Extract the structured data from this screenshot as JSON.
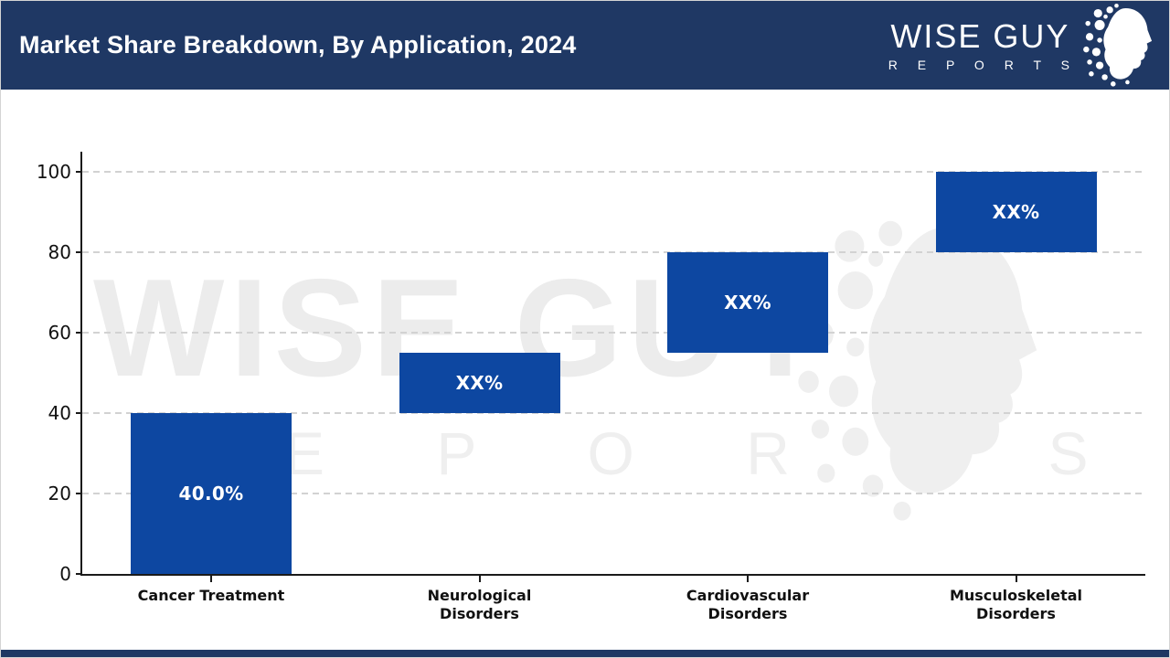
{
  "header": {
    "bg_color": "#1f3864",
    "title": "Market Share Breakdown, By Application, 2024",
    "logo": {
      "name": "WISE GUY",
      "sub": "R E P O R T S"
    }
  },
  "watermark": {
    "line1": "WISE GUY",
    "line2": "R E P O R T S"
  },
  "footer": {
    "bg_color": "#1f3864"
  },
  "chart_data": {
    "type": "bar",
    "subtype": "waterfall",
    "title": "Market Share Breakdown, By Application, 2024",
    "categories": [
      "Cancer Treatment",
      "Neurological Disorders",
      "Cardiovascular Disorders",
      "Musculoskeletal Disorders"
    ],
    "category_label_lines": [
      [
        "Cancer Treatment"
      ],
      [
        "Neurological",
        "Disorders"
      ],
      [
        "Cardiovascular",
        "Disorders"
      ],
      [
        "Musculoskeletal",
        "Disorders"
      ]
    ],
    "segments": [
      {
        "category": "Cancer Treatment",
        "start": 0,
        "end": 40,
        "label": "40.0%"
      },
      {
        "category": "Neurological Disorders",
        "start": 40,
        "end": 55,
        "label": "XX%"
      },
      {
        "category": "Cardiovascular Disorders",
        "start": 55,
        "end": 80,
        "label": "XX%"
      },
      {
        "category": "Musculoskeletal Disorders",
        "start": 80,
        "end": 100,
        "label": "XX%"
      }
    ],
    "bar_color": "#0d47a1",
    "bar_label_color": "#ffffff",
    "yticks": [
      0,
      20,
      40,
      60,
      80,
      100
    ],
    "ylim": [
      0,
      105
    ],
    "xlabel": "",
    "ylabel": "",
    "grid": "horizontal-dashed",
    "grid_color": "#d2d2d2",
    "legend": "none"
  }
}
